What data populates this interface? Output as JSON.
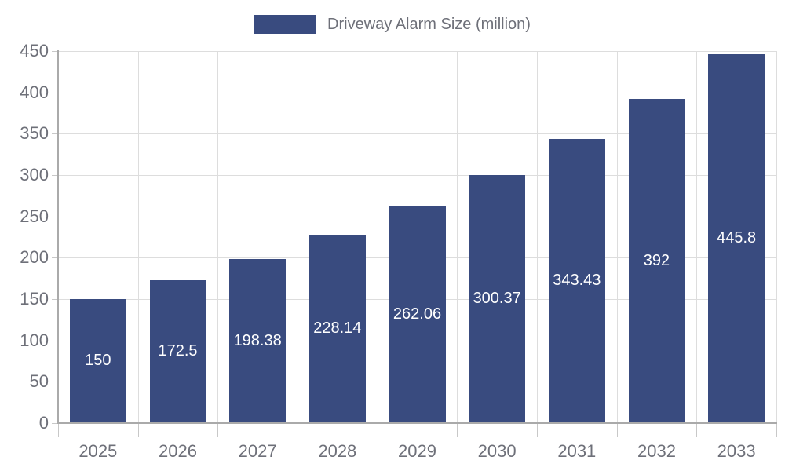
{
  "legend": {
    "label": "Driveway Alarm Size (million)"
  },
  "colors": {
    "bar": "#394b7f",
    "axis_line": "#aaaaaa",
    "gridline": "#dddddd",
    "tick": "#c8c8c8",
    "axis_text": "#6e7079",
    "bar_label_text": "#ffffff",
    "background": "#ffffff"
  },
  "chart_data": {
    "type": "bar",
    "title": "",
    "legend_entries": [
      "Driveway Alarm Size (million)"
    ],
    "legend_position": "top-center",
    "categories": [
      "2025",
      "2026",
      "2027",
      "2028",
      "2029",
      "2030",
      "2031",
      "2032",
      "2033"
    ],
    "series": [
      {
        "name": "Driveway Alarm Size (million)",
        "values": [
          150,
          172.5,
          198.38,
          228.14,
          262.06,
          300.37,
          343.43,
          392,
          445.8
        ]
      }
    ],
    "bar_value_labels": [
      "150",
      "172.5",
      "198.38",
      "228.14",
      "262.06",
      "300.37",
      "343.43",
      "392",
      "445.8"
    ],
    "xlabel": "",
    "ylabel": "",
    "ylim": [
      0,
      450
    ],
    "yticks": [
      0,
      50,
      100,
      150,
      200,
      250,
      300,
      350,
      400,
      450
    ],
    "grid": true,
    "value_label_position": "inside-center"
  }
}
